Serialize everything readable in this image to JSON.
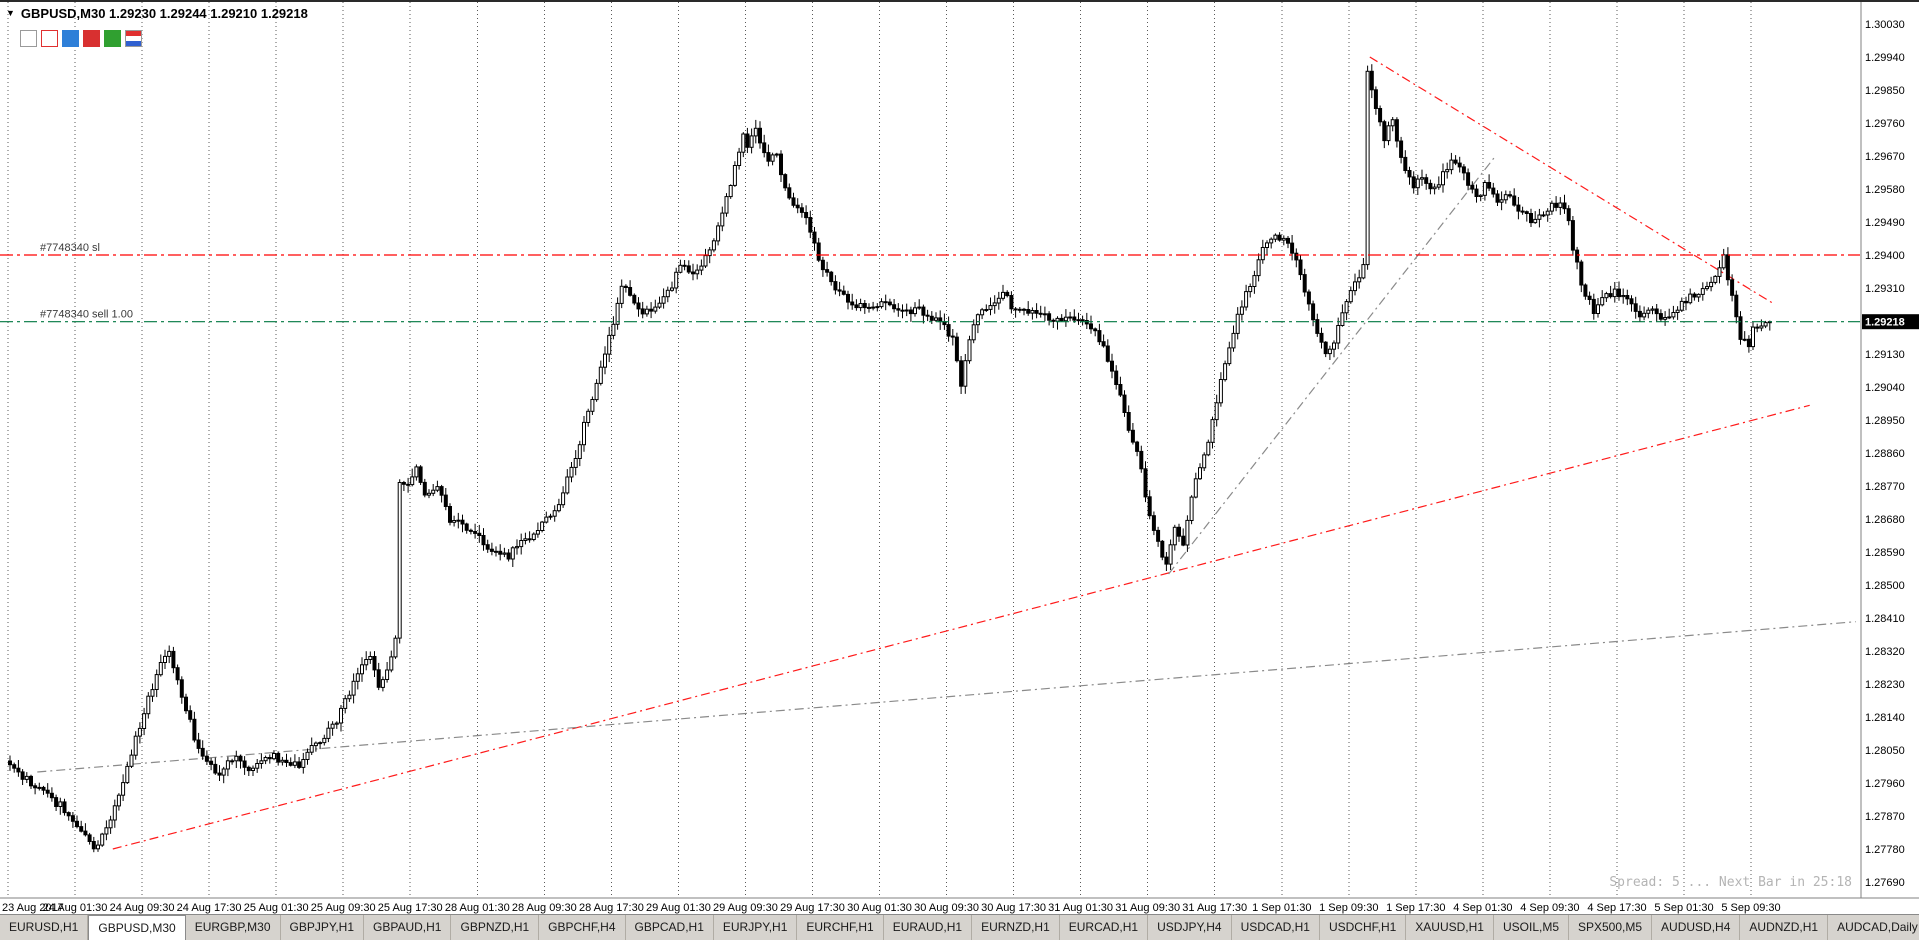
{
  "window": {
    "collapse_icon": "▼",
    "symbol": "GBPUSD",
    "timeframe": "M30",
    "title_line": "GBPUSD,M30 1.29230 1.29244 1.29210 1.29218",
    "ohlc": {
      "open": "1.29230",
      "high": "1.29244",
      "low": "1.29210",
      "close": "1.29218"
    }
  },
  "toolbar": {
    "buttons": [
      {
        "name": "white-square-button",
        "fill": "#ffffff",
        "border": "#9a9a9a"
      },
      {
        "name": "red-outline-square-button",
        "fill": "#ffffff",
        "border": "#e03030"
      },
      {
        "name": "blue-square-button",
        "fill": "#2e7fd8",
        "border": "#2e7fd8"
      },
      {
        "name": "red-square-button",
        "fill": "#d83030",
        "border": "#d83030"
      },
      {
        "name": "green-square-button",
        "fill": "#30a030",
        "border": "#30a030"
      },
      {
        "name": "striped-flag-button",
        "fill": "stripes",
        "border": "#9a9a9a",
        "stripes": [
          "#e03030",
          "#ffffff",
          "#3060d0"
        ]
      }
    ]
  },
  "status": {
    "info_text": "Spread: 5 ... Next Bar in 25:18"
  },
  "chart_data": {
    "type": "candlestick",
    "symbol": "GBPUSD",
    "timeframe": "M30",
    "current_price": "1.29218",
    "price_badge": "1.29218",
    "bars_total": 421,
    "colors": {
      "bull": "#ffffff",
      "bear": "#000000",
      "outline": "#000000",
      "grid": "#5a5a5a",
      "sl_line": "#ff0000",
      "order_line": "#007840",
      "trend_red": "#ff1a1a",
      "trend_gray": "#8a8a8a",
      "badge_bg": "#000000",
      "badge_text": "#ffffff"
    },
    "y_axis": {
      "top_price": 1.3003,
      "step": 0.0009,
      "labels": [
        "1.30030",
        "1.29940",
        "1.29850",
        "1.29760",
        "1.29670",
        "1.29580",
        "1.29490",
        "1.29400",
        "1.29310",
        "1.29220",
        "1.29130",
        "1.29040",
        "1.28950",
        "1.28860",
        "1.28770",
        "1.28680",
        "1.28590",
        "1.28500",
        "1.28410",
        "1.28320",
        "1.28230",
        "1.28140",
        "1.28050",
        "1.27960",
        "1.27870",
        "1.27780",
        "1.27690"
      ]
    },
    "x_axis": {
      "labels": [
        "23 Aug 2017",
        "24 Aug 01:30",
        "24 Aug 09:30",
        "24 Aug 17:30",
        "25 Aug 01:30",
        "25 Aug 09:30",
        "25 Aug 17:30",
        "28 Aug 01:30",
        "28 Aug 09:30",
        "28 Aug 17:30",
        "29 Aug 01:30",
        "29 Aug 09:30",
        "29 Aug 17:30",
        "30 Aug 01:30",
        "30 Aug 09:30",
        "30 Aug 17:30",
        "31 Aug 01:30",
        "31 Aug 09:30",
        "31 Aug 17:30",
        "1 Sep 01:30",
        "1 Sep 09:30",
        "1 Sep 17:30",
        "4 Sep 01:30",
        "4 Sep 09:30",
        "4 Sep 17:30",
        "5 Sep 01:30",
        "5 Sep 09:30"
      ]
    },
    "orders": [
      {
        "label": "#7748340 sl",
        "price": 1.294,
        "color_key": "sl_line"
      },
      {
        "label": "#7748340 sell 1.00",
        "price": 1.29218,
        "color_key": "order_line"
      }
    ],
    "trendlines": [
      {
        "name": "descending-red-trendline",
        "from": [
          325,
          1.2994
        ],
        "to": [
          421,
          1.2927
        ],
        "color_key": "trend_red"
      },
      {
        "name": "ascending-red-trendline",
        "from": [
          25,
          1.2778
        ],
        "to": [
          430,
          1.2899
        ],
        "color_key": "trend_red"
      },
      {
        "name": "ascending-gray-trendline-long",
        "from": [
          7,
          1.2799
        ],
        "to": [
          441,
          1.284
        ],
        "color_key": "trend_gray"
      },
      {
        "name": "ascending-gray-trendline-steep",
        "from": [
          277,
          1.2853
        ],
        "to": [
          355,
          1.2967
        ],
        "color_key": "trend_gray"
      }
    ],
    "price_path": [
      [
        0,
        1.2802
      ],
      [
        7,
        1.2795
      ],
      [
        15,
        1.2788
      ],
      [
        21,
        1.2778
      ],
      [
        25,
        1.2785
      ],
      [
        31,
        1.2808
      ],
      [
        36,
        1.2826
      ],
      [
        39,
        1.2832
      ],
      [
        43,
        1.2816
      ],
      [
        46,
        1.2805
      ],
      [
        51,
        1.2798
      ],
      [
        54,
        1.2803
      ],
      [
        58,
        1.28
      ],
      [
        64,
        1.2803
      ],
      [
        70,
        1.2801
      ],
      [
        75,
        1.2808
      ],
      [
        78,
        1.2811
      ],
      [
        81,
        1.2818
      ],
      [
        84,
        1.2826
      ],
      [
        87,
        1.283
      ],
      [
        89,
        1.2823
      ],
      [
        91,
        1.2826
      ],
      [
        93,
        1.2835
      ],
      [
        94,
        1.2877
      ],
      [
        96,
        1.2878
      ],
      [
        98,
        1.2882
      ],
      [
        100,
        1.2875
      ],
      [
        103,
        1.2877
      ],
      [
        106,
        1.2868
      ],
      [
        111,
        1.2865
      ],
      [
        115,
        1.286
      ],
      [
        120,
        1.2858
      ],
      [
        123,
        1.2862
      ],
      [
        127,
        1.2865
      ],
      [
        132,
        1.2872
      ],
      [
        136,
        1.2885
      ],
      [
        139,
        1.2898
      ],
      [
        142,
        1.2909
      ],
      [
        145,
        1.2922
      ],
      [
        147,
        1.2932
      ],
      [
        150,
        1.2927
      ],
      [
        152,
        1.2924
      ],
      [
        156,
        1.2927
      ],
      [
        159,
        1.2932
      ],
      [
        161,
        1.2937
      ],
      [
        164,
        1.2934
      ],
      [
        167,
        1.2939
      ],
      [
        170,
        1.2947
      ],
      [
        173,
        1.2959
      ],
      [
        176,
        1.2972
      ],
      [
        177,
        1.2969
      ],
      [
        179,
        1.2974
      ],
      [
        182,
        1.2966
      ],
      [
        184,
        1.2967
      ],
      [
        186,
        1.2959
      ],
      [
        188,
        1.2954
      ],
      [
        191,
        1.295
      ],
      [
        194,
        1.2939
      ],
      [
        197,
        1.2932
      ],
      [
        200,
        1.2929
      ],
      [
        205,
        1.2925
      ],
      [
        209,
        1.2927
      ],
      [
        214,
        1.2924
      ],
      [
        218,
        1.2925
      ],
      [
        223,
        1.2922
      ],
      [
        226,
        1.2917
      ],
      [
        228,
        1.2905
      ],
      [
        231,
        1.2922
      ],
      [
        235,
        1.2927
      ],
      [
        238,
        1.293
      ],
      [
        241,
        1.2924
      ],
      [
        245,
        1.2925
      ],
      [
        250,
        1.2922
      ],
      [
        254,
        1.2924
      ],
      [
        259,
        1.292
      ],
      [
        262,
        1.2915
      ],
      [
        265,
        1.2905
      ],
      [
        268,
        1.2893
      ],
      [
        271,
        1.2882
      ],
      [
        273,
        1.2868
      ],
      [
        275,
        1.2862
      ],
      [
        277,
        1.2855
      ],
      [
        279,
        1.2865
      ],
      [
        281,
        1.286
      ],
      [
        283,
        1.2875
      ],
      [
        286,
        1.2885
      ],
      [
        288,
        1.2895
      ],
      [
        290,
        1.2905
      ],
      [
        292,
        1.2915
      ],
      [
        294,
        1.2924
      ],
      [
        297,
        1.2932
      ],
      [
        300,
        1.2942
      ],
      [
        303,
        1.2945
      ],
      [
        306,
        1.2944
      ],
      [
        309,
        1.2935
      ],
      [
        312,
        1.2922
      ],
      [
        315,
        1.2913
      ],
      [
        317,
        1.2917
      ],
      [
        319,
        1.2925
      ],
      [
        321,
        1.293
      ],
      [
        324,
        1.2937
      ],
      [
        325,
        1.2991
      ],
      [
        326,
        1.2985
      ],
      [
        327,
        1.2979
      ],
      [
        329,
        1.2972
      ],
      [
        331,
        1.2977
      ],
      [
        333,
        1.2966
      ],
      [
        336,
        1.2959
      ],
      [
        338,
        1.2962
      ],
      [
        340,
        1.2957
      ],
      [
        342,
        1.296
      ],
      [
        345,
        1.2966
      ],
      [
        347,
        1.2964
      ],
      [
        349,
        1.2959
      ],
      [
        351,
        1.2955
      ],
      [
        353,
        1.2959
      ],
      [
        356,
        1.2954
      ],
      [
        358,
        1.2957
      ],
      [
        361,
        1.2952
      ],
      [
        365,
        1.2949
      ],
      [
        368,
        1.2952
      ],
      [
        371,
        1.2955
      ],
      [
        373,
        1.295
      ],
      [
        374,
        1.2942
      ],
      [
        376,
        1.2932
      ],
      [
        379,
        1.2925
      ],
      [
        381,
        1.2929
      ],
      [
        384,
        1.293
      ],
      [
        387,
        1.2927
      ],
      [
        390,
        1.2924
      ],
      [
        393,
        1.2925
      ],
      [
        396,
        1.2922
      ],
      [
        399,
        1.2925
      ],
      [
        402,
        1.2929
      ],
      [
        405,
        1.293
      ],
      [
        408,
        1.2934
      ],
      [
        410,
        1.2939
      ],
      [
        412,
        1.2929
      ],
      [
        414,
        1.2918
      ],
      [
        416,
        1.2914
      ],
      [
        417,
        1.292
      ],
      [
        420,
        1.29218
      ]
    ]
  },
  "tabs": {
    "active_index": 1,
    "items": [
      "EURUSD,H1",
      "GBPUSD,M30",
      "EURGBP,M30",
      "GBPJPY,H1",
      "GBPAUD,H1",
      "GBPNZD,H1",
      "GBPCHF,H4",
      "GBPCAD,H1",
      "EURJPY,H1",
      "EURCHF,H1",
      "EURAUD,H1",
      "EURNZD,H1",
      "EURCAD,H1",
      "USDJPY,H4",
      "USDCAD,H1",
      "USDCHF,H1",
      "XAUUSD,H1",
      "USOIL,M5",
      "SPX500,M5",
      "AUDUSD,H4",
      "AUDNZD,H1",
      "AUDCAD,Daily"
    ]
  }
}
